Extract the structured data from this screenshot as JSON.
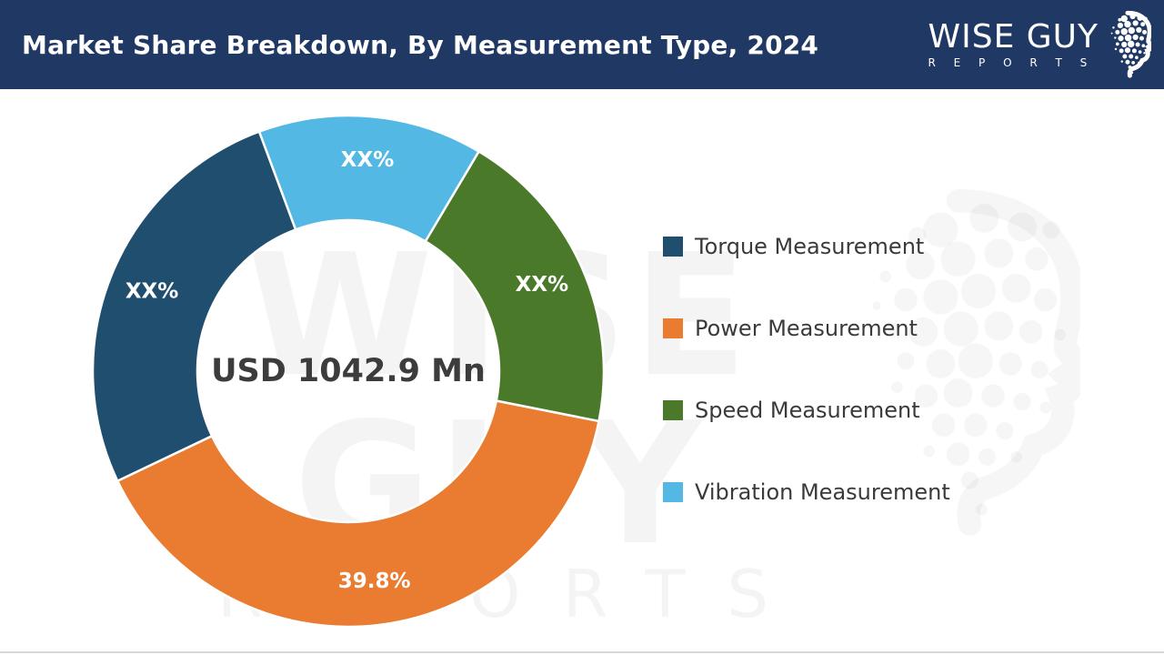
{
  "header": {
    "title": "Market Share Breakdown, By Measurement Type, 2024",
    "logo": {
      "line1": "WISE GUY",
      "line2": "R E P O R T S"
    }
  },
  "watermark": {
    "line1": "WISE GUY",
    "line2": "REPORTS"
  },
  "chart_data": {
    "type": "donut",
    "title": "Market Share Breakdown, By Measurement Type, 2024",
    "center_label": "USD 1042.9 Mn",
    "start_angle_deg": 110.4,
    "direction": "counterclockwise",
    "legend_position": "right",
    "donut_hole_ratio": 0.59,
    "series": [
      {
        "name": "Torque Measurement",
        "value_pct": 26.4,
        "label": "XX%",
        "color": "#204e6e"
      },
      {
        "name": "Power Measurement",
        "value_pct": 39.8,
        "label": "39.8%",
        "color": "#e97c30"
      },
      {
        "name": "Speed Measurement",
        "value_pct": 19.6,
        "label": "XX%",
        "color": "#4a7a29"
      },
      {
        "name": "Vibration Measurement",
        "value_pct": 14.2,
        "label": "XX%",
        "color": "#53b9e4"
      }
    ]
  },
  "colors": {
    "header_bg": "#203864",
    "divider": "#d8d8d8",
    "center_text": "#3c3c3c",
    "legend_text": "#3a3a3a"
  }
}
